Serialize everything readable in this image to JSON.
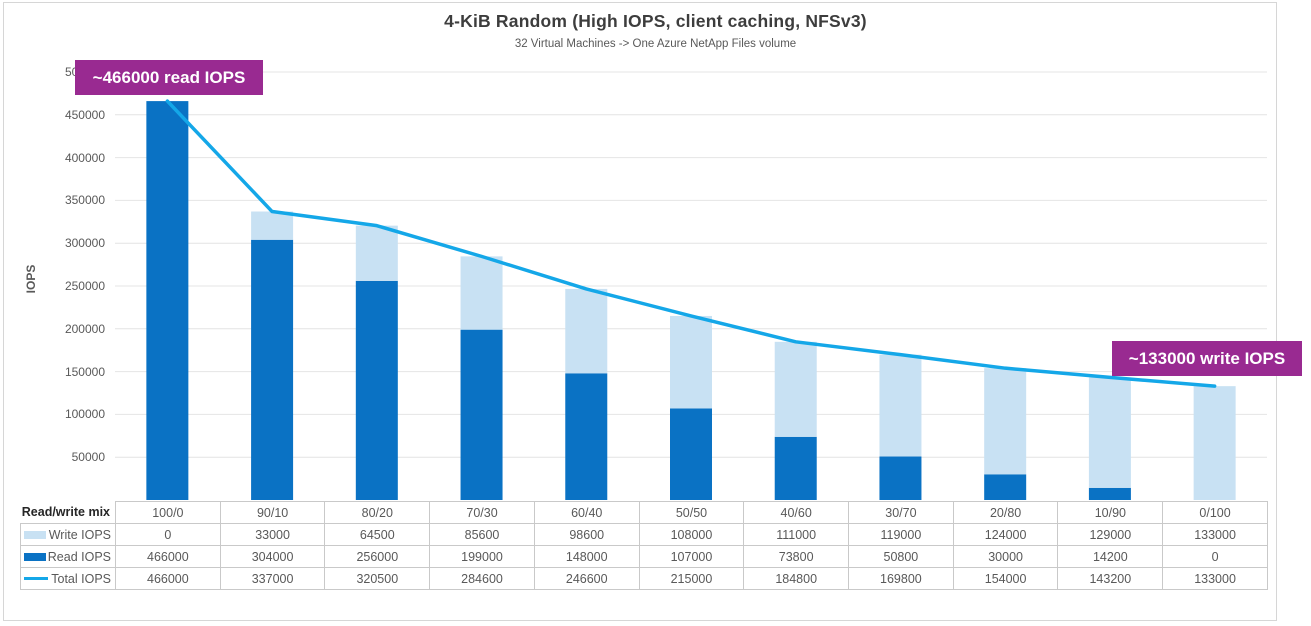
{
  "title": "4-KiB Random (High IOPS, client caching, NFSv3)",
  "subtitle": "32 Virtual Machines -> One Azure NetApp Files volume",
  "y_axis_label": "IOPS",
  "annotations": {
    "read": "~466000 read IOPS",
    "write": "~133000 write IOPS"
  },
  "colors": {
    "read_bar": "#0a72c4",
    "write_bar": "#c8e1f3",
    "total_line": "#14a7e8",
    "annotation_bg": "#992a91",
    "gridline": "#e4e4e4",
    "table_border": "#c9c9c9"
  },
  "chart_data": {
    "type": "bar",
    "subtype": "stacked-bars-with-total-line",
    "title": "4-KiB Random (High IOPS, client caching, NFSv3)",
    "subtitle": "32 Virtual Machines -> One Azure NetApp Files volume",
    "ylabel": "IOPS",
    "xlabel_header": "Read/write mix",
    "ylim": [
      0,
      500000
    ],
    "ytick_step": 50000,
    "grid": true,
    "legend_position": "data-table-left",
    "categories": [
      "100/0",
      "90/10",
      "80/20",
      "70/30",
      "60/40",
      "50/50",
      "40/60",
      "30/70",
      "20/80",
      "10/90",
      "0/100"
    ],
    "series": [
      {
        "name": "Write IOPS",
        "type": "bar",
        "color": "#c8e1f3",
        "values": [
          0,
          33000,
          64500,
          85600,
          98600,
          108000,
          111000,
          119000,
          124000,
          129000,
          133000
        ]
      },
      {
        "name": "Read IOPS",
        "type": "bar",
        "color": "#0a72c4",
        "values": [
          466000,
          304000,
          256000,
          199000,
          148000,
          107000,
          73800,
          50800,
          30000,
          14200,
          0
        ]
      },
      {
        "name": "Total IOPS",
        "type": "line",
        "color": "#14a7e8",
        "values": [
          466000,
          337000,
          320500,
          284600,
          246600,
          215000,
          184800,
          169800,
          154000,
          143200,
          133000
        ]
      }
    ]
  }
}
